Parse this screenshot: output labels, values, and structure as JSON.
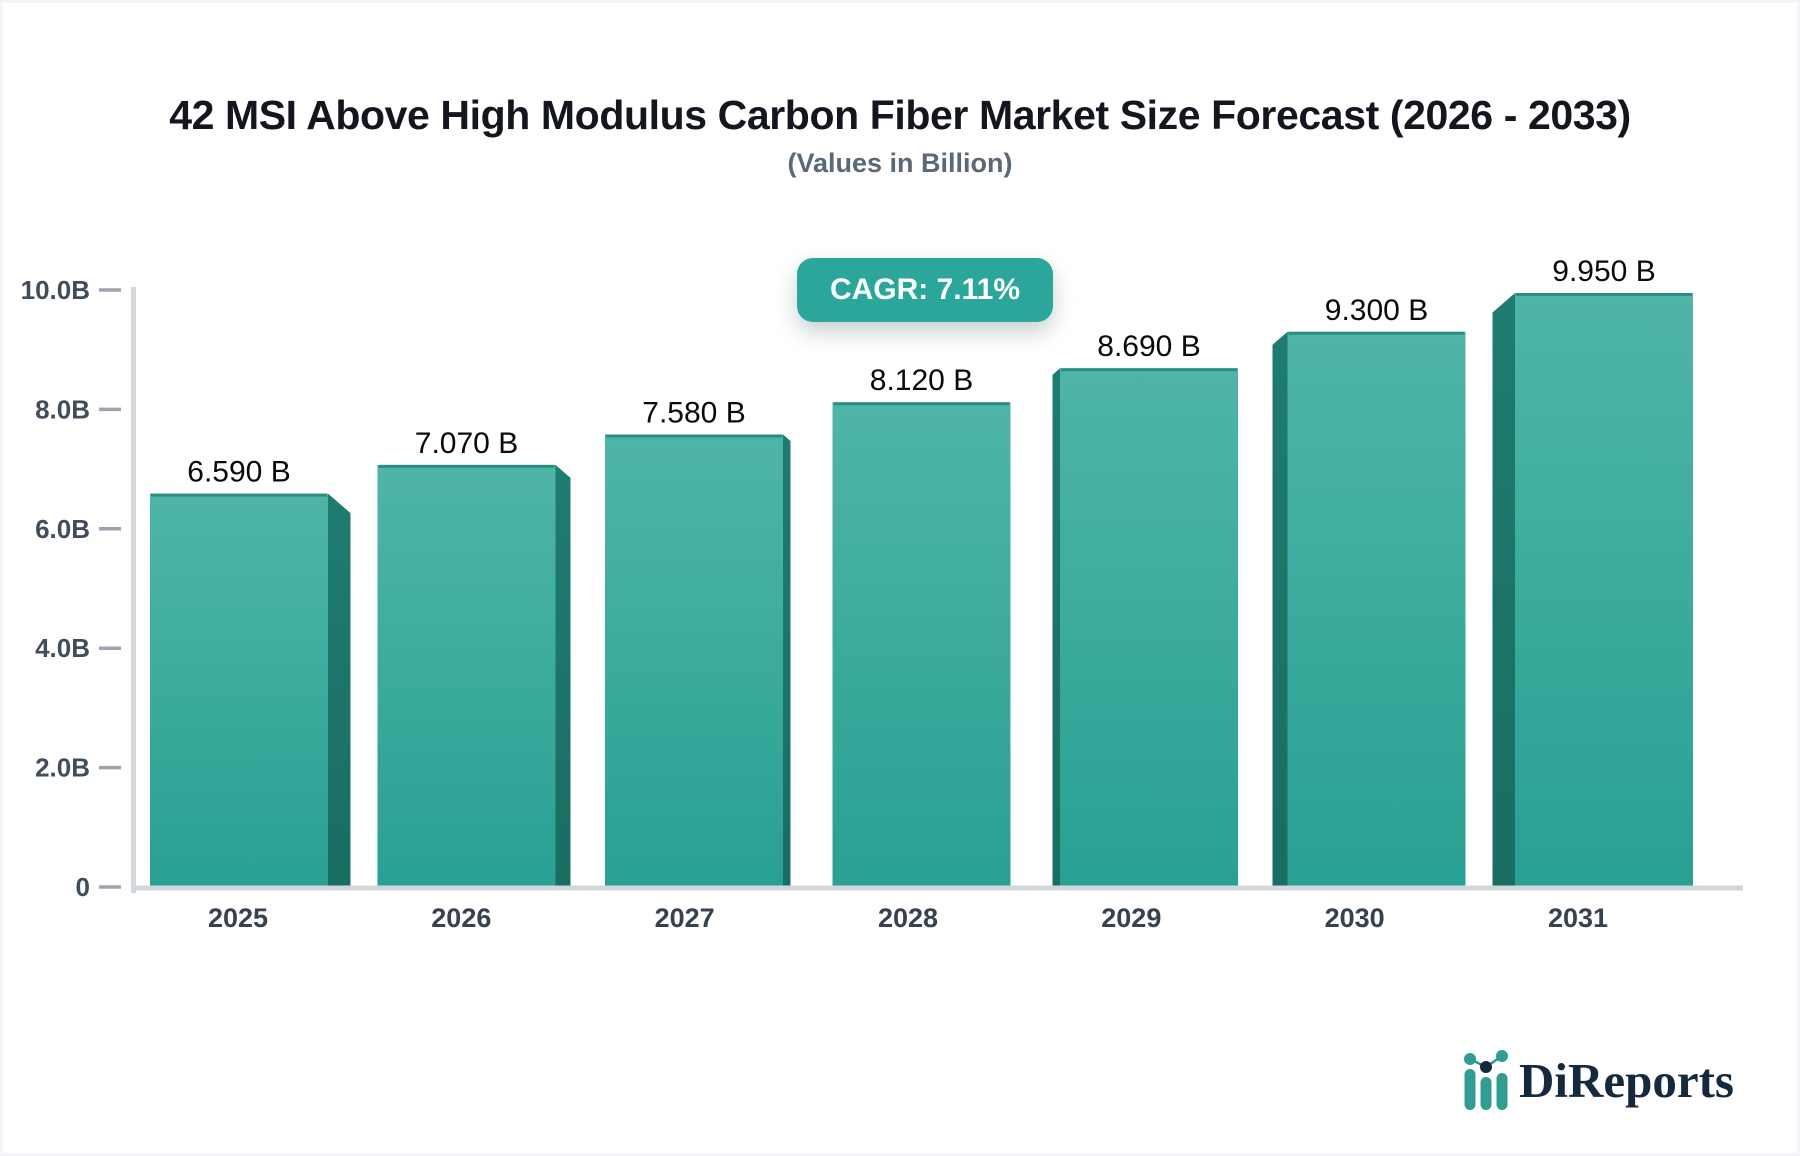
{
  "header": {
    "title": "42 MSI Above High Modulus Carbon Fiber Market Size Forecast (2026 - 2033)",
    "subtitle": "(Values in Billion)"
  },
  "chart_data": {
    "type": "bar",
    "title": "42 MSI Above High Modulus Carbon Fiber Market Size Forecast (2026 - 2033)",
    "subtitle": "(Values in Billion)",
    "categories": [
      "2025",
      "2026",
      "2027",
      "2028",
      "2029",
      "2030",
      "2031"
    ],
    "values": [
      6.59,
      7.07,
      7.58,
      8.12,
      8.69,
      9.3,
      9.95
    ],
    "value_labels": [
      "6.590 B",
      "7.070 B",
      "7.580 B",
      "8.120 B",
      "8.690 B",
      "9.300 B",
      "9.950 B"
    ],
    "cagr_badge": "CAGR: 7.11%",
    "xlabel": "",
    "ylabel": "",
    "ylim": [
      0,
      10
    ],
    "grid": false,
    "legend": false,
    "bar_style": "3d-perspective",
    "y_axis": {
      "max": 10,
      "ticks": [
        {
          "value": 0,
          "label": "0"
        },
        {
          "value": 2,
          "label": "2.0B"
        },
        {
          "value": 4,
          "label": "4.0B"
        },
        {
          "value": 6,
          "label": "6.0B"
        },
        {
          "value": 8,
          "label": "8.0B"
        },
        {
          "value": 10,
          "label": "10.0B"
        }
      ]
    }
  },
  "branding": {
    "name": "DiReports"
  },
  "colors": {
    "bar_face_top": "#4fb5a8",
    "bar_face_mid": "#39aa9c",
    "bar_face_bottom": "#28a093",
    "bar_side": "#1e7c70",
    "bar_side_dark": "#1a6d62",
    "bar_top_edge": "#2a8d80",
    "badge_bg": "#2aa79a",
    "axis_line": "#d2d7dc",
    "tick": "#9aa3ae",
    "tick_label": "#414d5c",
    "year_label": "#36424f",
    "value_label": "#0a0a0a",
    "title": "#13161f",
    "subtitle": "#5a6877",
    "logo_navy": "#15293e",
    "logo_teal": "#2f9d94"
  }
}
